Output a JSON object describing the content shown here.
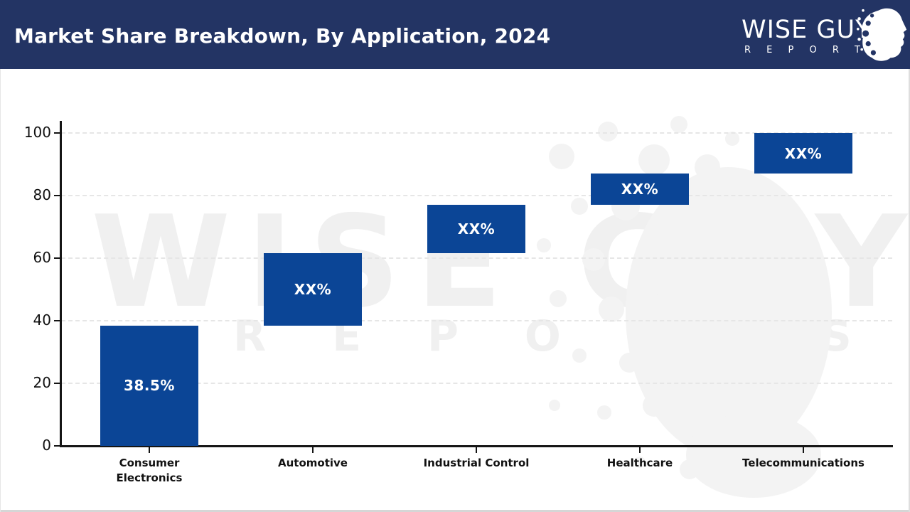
{
  "header": {
    "title": "Market Share Breakdown, By Application, 2024",
    "logo": {
      "line1": "WISE GUY",
      "line2": "R E P O R T S"
    }
  },
  "watermark": {
    "line1": "WISE GUY",
    "line2": "R E P O R T S"
  },
  "chart_data": {
    "type": "bar",
    "subtype": "waterfall",
    "title": "Market Share Breakdown, By Application, 2024",
    "xlabel": "",
    "ylabel": "",
    "yticks": [
      0,
      20,
      40,
      60,
      80,
      100
    ],
    "ylim": [
      0,
      105
    ],
    "grid": "horizontal-dashed",
    "legend": "none",
    "categories": [
      {
        "label": "Consumer Electronics",
        "lines": [
          "Consumer",
          "Electronics"
        ]
      },
      {
        "label": "Automotive",
        "lines": [
          "Automotive"
        ]
      },
      {
        "label": "Industrial Control",
        "lines": [
          "Industrial Control"
        ]
      },
      {
        "label": "Healthcare",
        "lines": [
          "Healthcare"
        ]
      },
      {
        "label": "Telecommunications",
        "lines": [
          "Telecommunications"
        ]
      }
    ],
    "segments": [
      {
        "category": "Consumer Electronics",
        "start": 0,
        "end": 38.5,
        "label": "38.5%"
      },
      {
        "category": "Automotive",
        "start": 38.5,
        "end": 61.5,
        "label": "XX%"
      },
      {
        "category": "Industrial Control",
        "start": 61.5,
        "end": 77,
        "label": "XX%"
      },
      {
        "category": "Healthcare",
        "start": 77,
        "end": 87,
        "label": "XX%"
      },
      {
        "category": "Telecommunications",
        "start": 87,
        "end": 100,
        "label": "XX%"
      }
    ],
    "colors": {
      "bar": "#0b4596",
      "bar_label": "#ffffff",
      "header_bg": "#233464",
      "axis": "#151515",
      "gridline": "#e6e6e6",
      "watermark": "#f0f0f0"
    }
  }
}
